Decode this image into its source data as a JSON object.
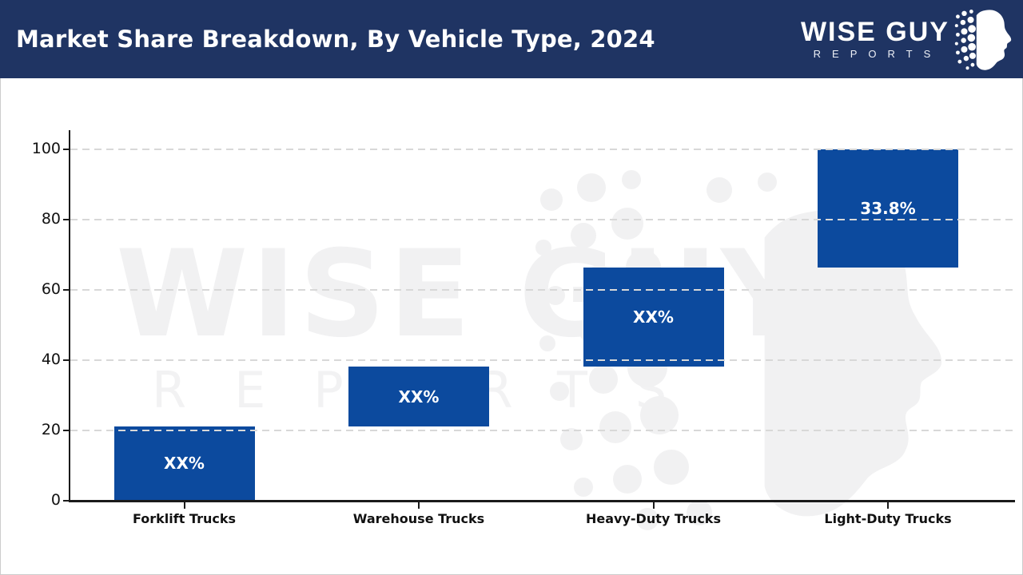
{
  "header": {
    "title": "Market Share Breakdown, By Vehicle Type, 2024",
    "background": "#1f3463"
  },
  "logo": {
    "wordmark": "WISE GUY",
    "subtitle": "REPORTS"
  },
  "watermark": {
    "line1": "WISE GUY",
    "line2": "REPORTS"
  },
  "chart_data": {
    "type": "bar",
    "variant": "floating-segment-waterfall",
    "title": "Market Share Breakdown, By Vehicle Type, 2024",
    "categories": [
      "Forklift Trucks",
      "Warehouse Trucks",
      "Heavy-Duty Trucks",
      "Light-Duty Trucks"
    ],
    "bars": [
      {
        "category": "Forklift Trucks",
        "start": 0,
        "end": 21,
        "label": "XX%"
      },
      {
        "category": "Warehouse Trucks",
        "start": 21,
        "end": 38,
        "label": "XX%"
      },
      {
        "category": "Heavy-Duty Trucks",
        "start": 38,
        "end": 66.2,
        "label": "XX%"
      },
      {
        "category": "Light-Duty Trucks",
        "start": 66.2,
        "end": 100,
        "label": "33.8%"
      }
    ],
    "ylim": [
      0,
      105
    ],
    "yticks": [
      0,
      20,
      40,
      60,
      80,
      100
    ],
    "xlabel": "",
    "ylabel": "",
    "grid": "horizontal-dashed",
    "legend": null,
    "bar_color": "#0c4a9e",
    "gridline_color": "#d8d8d8",
    "axis_color": "#1a1a1a"
  }
}
